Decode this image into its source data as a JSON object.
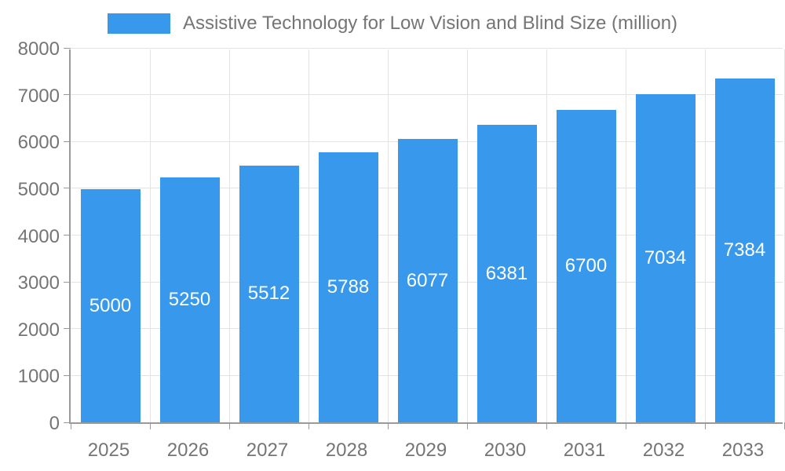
{
  "chart_data": {
    "type": "bar",
    "title": "Assistive Technology for Low Vision and Blind Size (million)",
    "categories": [
      "2025",
      "2026",
      "2027",
      "2028",
      "2029",
      "2030",
      "2031",
      "2032",
      "2033"
    ],
    "values": [
      5000,
      5250,
      5512,
      5788,
      6077,
      6381,
      6700,
      7034,
      7384
    ],
    "value_labels_shown": true,
    "xlabel": "",
    "ylabel": "",
    "ylim": [
      0,
      8000
    ],
    "ytick_interval": 1000,
    "yticks": [
      0,
      1000,
      2000,
      3000,
      4000,
      5000,
      6000,
      7000,
      8000
    ],
    "grid": true,
    "legend_position": "top"
  },
  "legend": {
    "label": "Assistive Technology for Low Vision and Blind Size (million)"
  },
  "colors": {
    "bar": "#3899EC",
    "grid": "#E3E3E3",
    "axis": "#9A9A9A",
    "tick_text": "#757575",
    "legend_text": "#757575",
    "value_label": "#FFFFFF",
    "background": "#FFFFFF"
  }
}
